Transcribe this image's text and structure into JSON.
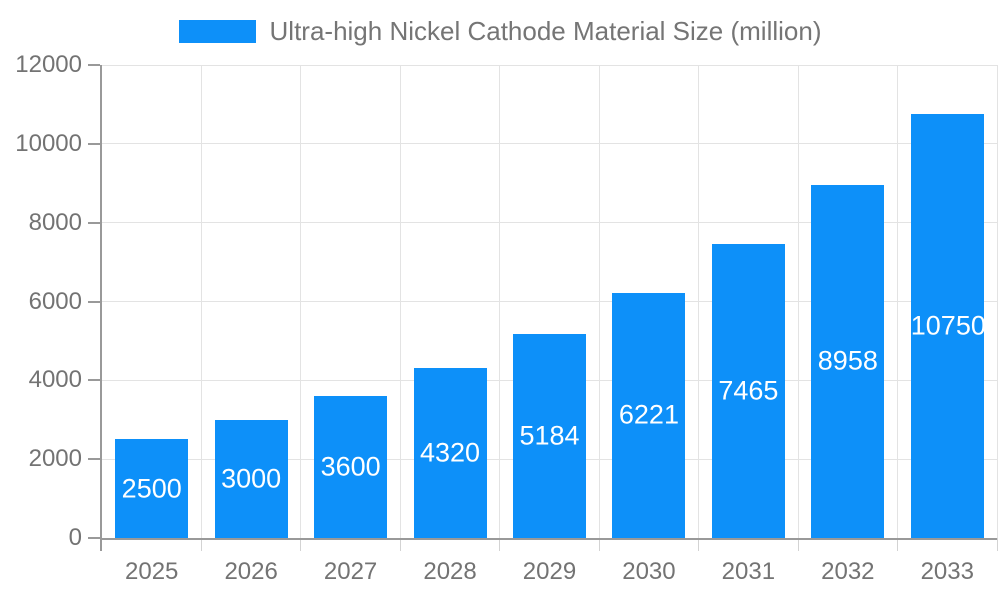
{
  "legend": {
    "label": "Ultra-high Nickel Cathode Material Size (million)"
  },
  "chart_data": {
    "type": "bar",
    "title": "",
    "xlabel": "",
    "ylabel": "",
    "categories": [
      "2025",
      "2026",
      "2027",
      "2028",
      "2029",
      "2030",
      "2031",
      "2032",
      "2033"
    ],
    "series": [
      {
        "name": "Ultra-high Nickel Cathode Material Size (million)",
        "values": [
          2500,
          3000,
          3600,
          4320,
          5184,
          6221,
          7465,
          8958,
          10750
        ]
      }
    ],
    "value_labels_shown": true,
    "ylim": [
      0,
      12000
    ],
    "yticks": [
      0,
      2000,
      4000,
      6000,
      8000,
      10000,
      12000
    ],
    "grid": true,
    "legend_position": "top",
    "colors": {
      "bar": "#0d90f9",
      "grid": "#e3e3e3",
      "axis": "#999999",
      "tick_text": "#737373",
      "value_label_text": "#ffffff",
      "minor_tick": "#d3d3d3"
    }
  }
}
